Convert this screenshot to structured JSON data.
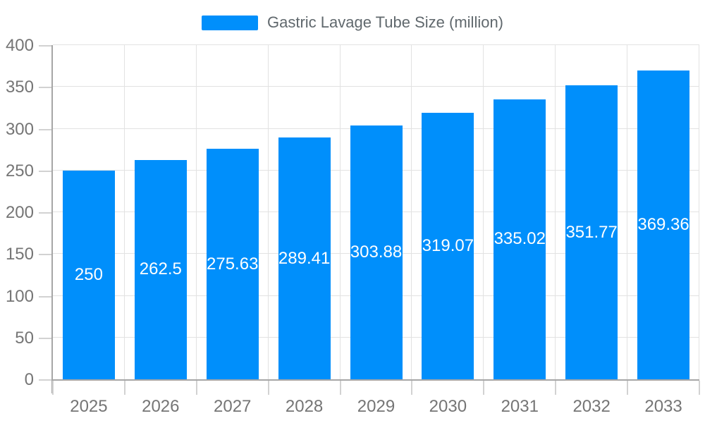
{
  "chart_data": {
    "type": "bar",
    "title": "Gastric Lavage Tube Size (million)",
    "categories": [
      "2025",
      "2026",
      "2027",
      "2028",
      "2029",
      "2030",
      "2031",
      "2032",
      "2033"
    ],
    "series": [
      {
        "name": "Gastric Lavage Tube Size (million)",
        "values": [
          250,
          262.5,
          275.63,
          289.41,
          303.88,
          319.07,
          335.02,
          351.77,
          369.36
        ]
      }
    ],
    "data_labels": [
      "250",
      "262.5",
      "275.63",
      "289.41",
      "303.88",
      "319.07",
      "335.02",
      "351.77",
      "369.36"
    ],
    "xlabel": "",
    "ylabel": "",
    "ylim": [
      0,
      400
    ],
    "ytick_step": 50,
    "ytick_labels": [
      "0",
      "50",
      "100",
      "150",
      "200",
      "250",
      "300",
      "350",
      "400"
    ],
    "grid": true,
    "legend_position": "top",
    "colors": {
      "bar": "#008FFB",
      "grid": "#e2e2e2",
      "axis_line": "#a6a6a6",
      "tick": "#d2d2d2",
      "axis_text": "#757575",
      "legend_text": "#60686d",
      "data_label_text": "#ffffff",
      "background": "#ffffff"
    }
  }
}
